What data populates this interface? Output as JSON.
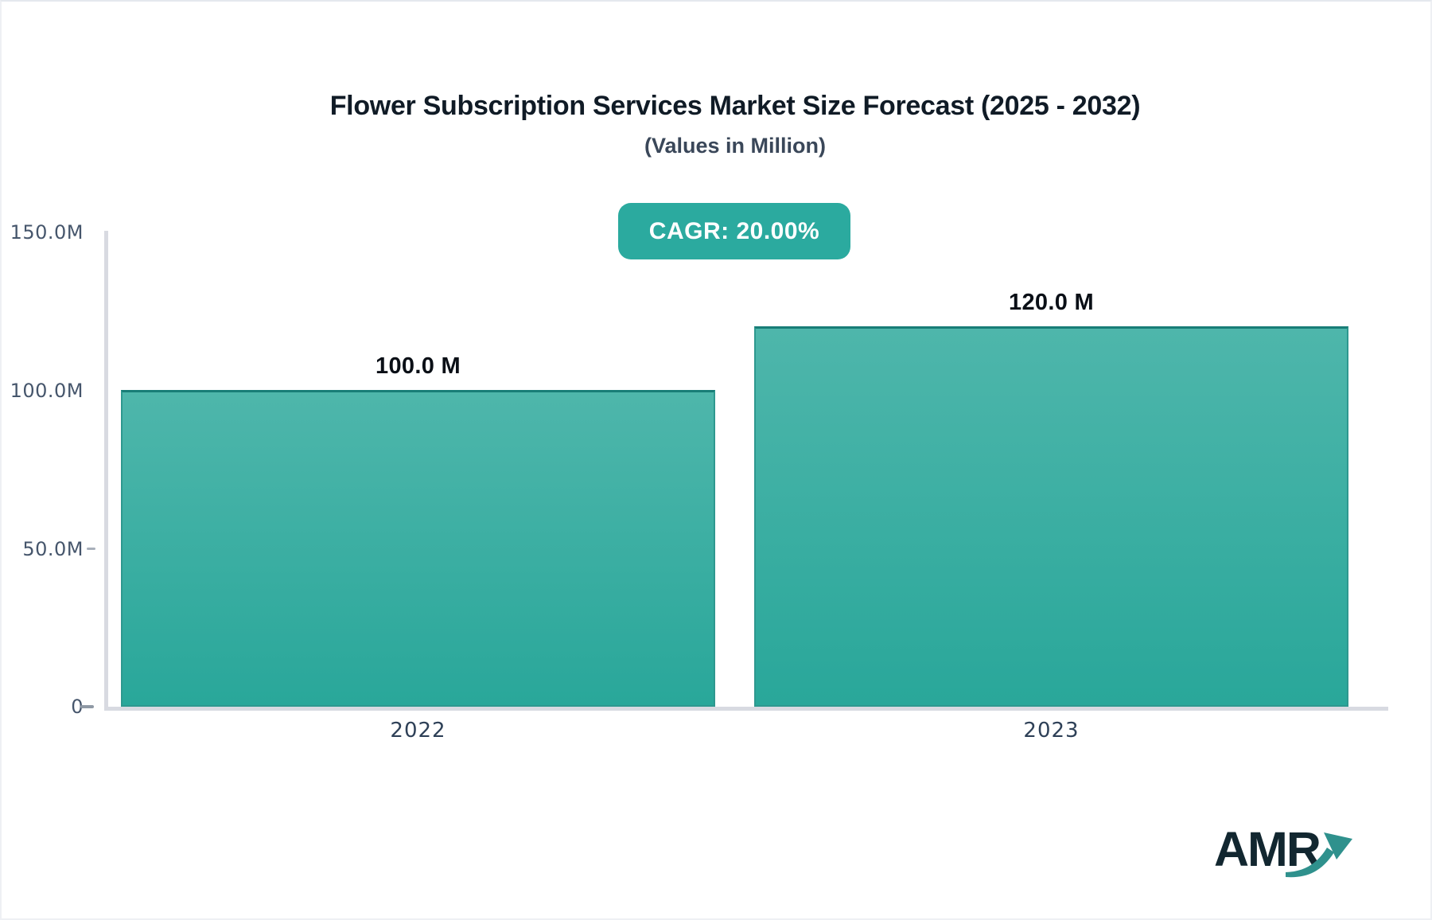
{
  "title": "Flower Subscription Services Market Size Forecast (2025 - 2032)",
  "subtitle": "(Values in Million)",
  "cagr_badge": {
    "label": "CAGR: 20.00%"
  },
  "chart_data": {
    "type": "bar",
    "title": "Flower Subscription Services Market Size Forecast (2025 - 2032)",
    "subtitle": "(Values in Million)",
    "unit": "Million",
    "cagr": "20.00%",
    "categories": [
      "2022",
      "2023"
    ],
    "values": [
      100.0,
      120.0
    ],
    "value_labels": [
      "100.0 M",
      "120.0 M"
    ],
    "ylim": [
      0,
      150
    ],
    "ytick_labels": {
      "t150": "150.0M",
      "t100": "100.0M",
      "t50": "50.0M",
      "t0": "0"
    },
    "grid": false,
    "legend": false
  },
  "branding": {
    "logo_text": "AMR",
    "logo_arrow": "growth-arrow-icon"
  },
  "colors": {
    "accent": "#2baa9f",
    "badge_text": "#ffffff",
    "bar_top": "#4eb6ab",
    "bar_bottom": "#29a79a",
    "axis_line": "#d8dae1",
    "title_text": "#101b26",
    "subtitle_text": "#3a4759",
    "axis_text": "#46566c",
    "category_text": "#2e4057",
    "value_text": "#0a0f16",
    "logo_text": "#122730",
    "logo_arrow": "#2f918d"
  }
}
